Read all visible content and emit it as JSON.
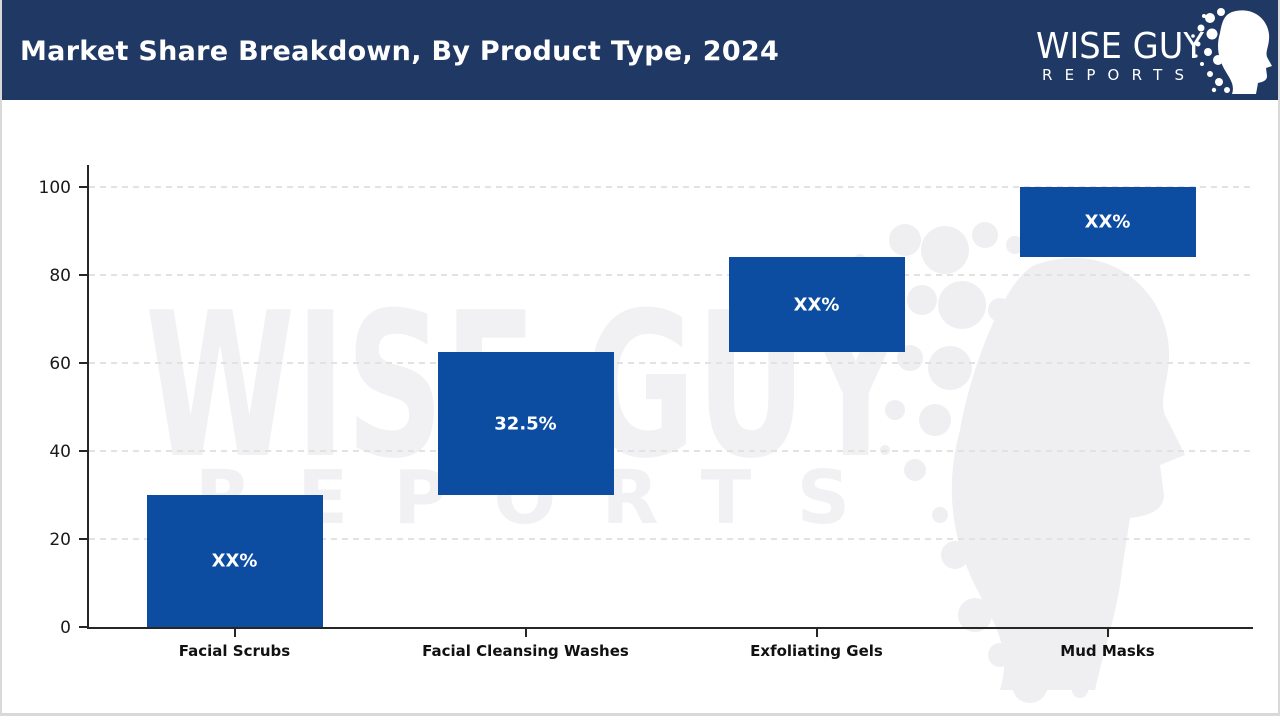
{
  "header": {
    "title": "Market Share Breakdown, By Product Type, 2024",
    "bg_color": "#1f3864",
    "logo": {
      "name": "WISE GUY",
      "sub": "REPORTS"
    }
  },
  "watermark": {
    "line1": "WISE GUY",
    "line2": "REPORTS"
  },
  "chart_data": {
    "type": "bar",
    "subtype": "floating-waterfall",
    "title": "Market Share Breakdown, By Product Type, 2024",
    "categories": [
      "Facial Scrubs",
      "Facial Cleansing Washes",
      "Exfoliating Gels",
      "Mud Masks"
    ],
    "bars": [
      {
        "category": "Facial Scrubs",
        "label": "XX%",
        "start": 0,
        "end": 30
      },
      {
        "category": "Facial Cleansing Washes",
        "label": "32.5%",
        "start": 30,
        "end": 62.5
      },
      {
        "category": "Exfoliating Gels",
        "label": "XX%",
        "start": 62.5,
        "end": 84
      },
      {
        "category": "Mud Masks",
        "label": "XX%",
        "start": 84,
        "end": 100
      }
    ],
    "xlabel": "",
    "ylabel": "",
    "ylim": [
      0,
      100
    ],
    "yticks": [
      0,
      20,
      40,
      60,
      80,
      100
    ],
    "grid": "horizontal-dashed",
    "gridline_color": "#e2e2e2",
    "legend": "none",
    "bar_color": "#0d4da1",
    "bar_label_color": "#ffffff"
  }
}
